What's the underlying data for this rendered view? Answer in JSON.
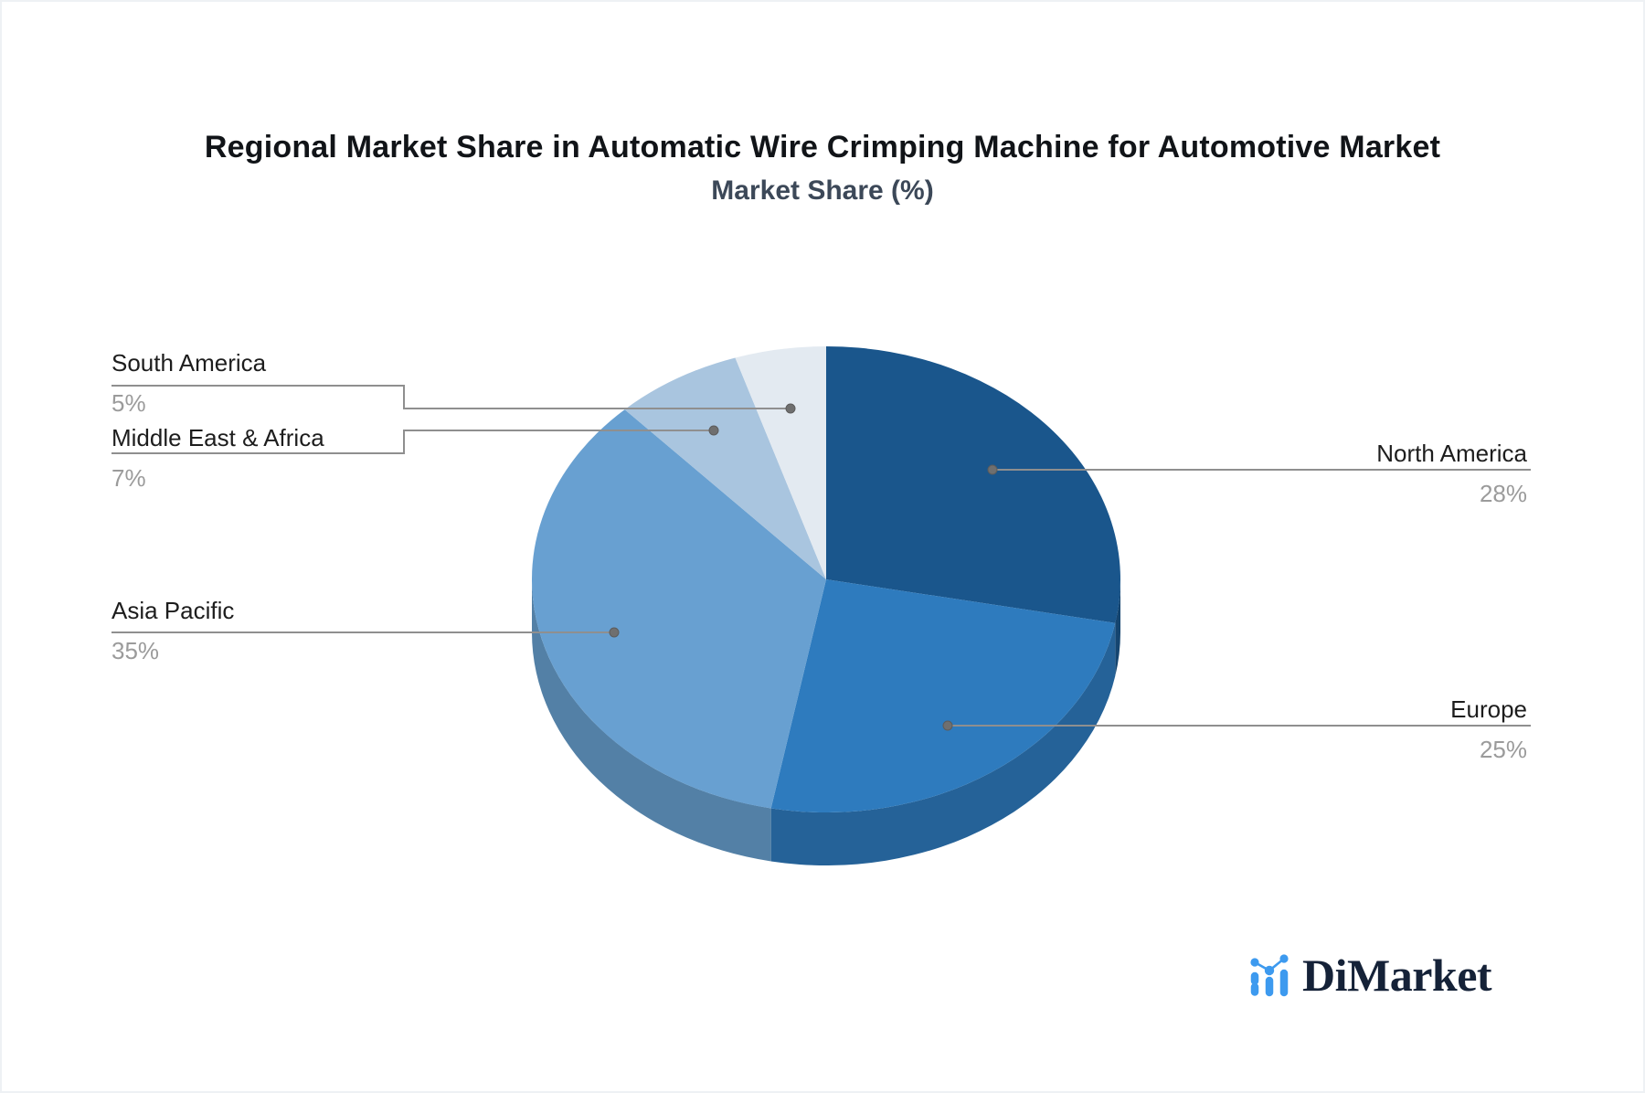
{
  "header": {
    "title": "Regional Market Share in Automatic Wire Crimping Machine for Automotive Market",
    "subtitle": "Market Share (%)"
  },
  "chart_data": {
    "type": "pie",
    "style": "3d",
    "title": "Regional Market Share in Automatic Wire Crimping Machine for Automotive Market",
    "subtitle": "Market Share (%)",
    "unit": "%",
    "start_angle_deg": 0,
    "direction": "clockwise",
    "legend": "none",
    "series": [
      {
        "name": "North America",
        "value": 28,
        "display": "28%",
        "color": "#1A568C",
        "side_color": "#154570",
        "label_side": "right"
      },
      {
        "name": "Europe",
        "value": 25,
        "display": "25%",
        "color": "#2E7BBE",
        "side_color": "#256298",
        "label_side": "right"
      },
      {
        "name": "Asia Pacific",
        "value": 35,
        "display": "35%",
        "color": "#68A0D1",
        "side_color": "#5380A6",
        "label_side": "left"
      },
      {
        "name": "Middle East & Africa",
        "value": 7,
        "display": "7%",
        "color": "#A9C5DF",
        "side_color": "#87A0B8",
        "label_side": "left"
      },
      {
        "name": "South America",
        "value": 5,
        "display": "5%",
        "color": "#E3EAF1",
        "side_color": "#B5BFCA",
        "label_side": "left"
      }
    ],
    "label_style": {
      "name_color": "#1d1d1d",
      "value_color": "#9b9b9b",
      "leader_line_color": "#8f8f8f",
      "leader_dot_color": "#6f6f6f"
    }
  },
  "logo": {
    "text": "DiMarket",
    "icon": "bar-chart-with-trend-icon",
    "icon_color": "#3D9AEF",
    "text_color": "#152238"
  }
}
